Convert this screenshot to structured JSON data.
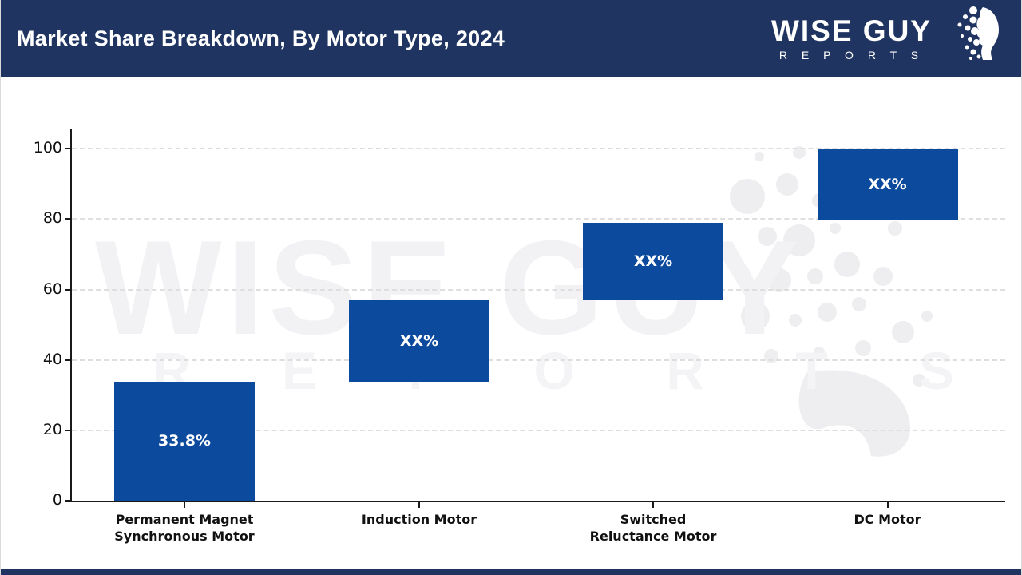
{
  "header": {
    "title": "Market Share Breakdown, By Motor Type, 2024",
    "bg_color": "#1f3461",
    "logo": {
      "line1": "WISE GUY",
      "line2": "R E P O R T S"
    }
  },
  "watermark": {
    "line1": "WISE GUY",
    "line2": "R E P O R T S"
  },
  "footer": {
    "bg_color": "#1f3461"
  },
  "chart_data": {
    "type": "bar",
    "subtype": "waterfall",
    "title": "Market Share Breakdown, By Motor Type, 2024",
    "xlabel": "",
    "ylabel": "",
    "ylim": [
      0,
      105
    ],
    "yticks": [
      0,
      20,
      40,
      60,
      80,
      100
    ],
    "grid": "horizontal-dashed",
    "legend": "none",
    "bar_color": "#0c4a9d",
    "value_label_color": "#ffffff",
    "categories": [
      {
        "label": "Permanent Magnet Synchronous Motor",
        "label_lines": [
          "Permanent Magnet",
          "Synchronous Motor"
        ]
      },
      {
        "label": "Induction Motor",
        "label_lines": [
          "Induction Motor"
        ]
      },
      {
        "label": "Switched Reluctance Motor",
        "label_lines": [
          "Switched",
          "Reluctance Motor"
        ]
      },
      {
        "label": "DC Motor",
        "label_lines": [
          "DC Motor"
        ]
      }
    ],
    "segments": [
      {
        "category": "Permanent Magnet Synchronous Motor",
        "start": 0,
        "end": 33.8,
        "label": "33.8%"
      },
      {
        "category": "Induction Motor",
        "start": 33.8,
        "end": 57.0,
        "label": "XX%"
      },
      {
        "category": "Switched Reluctance Motor",
        "start": 57.0,
        "end": 79.0,
        "label": "XX%"
      },
      {
        "category": "DC Motor",
        "start": 79.6,
        "end": 100,
        "label": "XX%"
      }
    ]
  }
}
